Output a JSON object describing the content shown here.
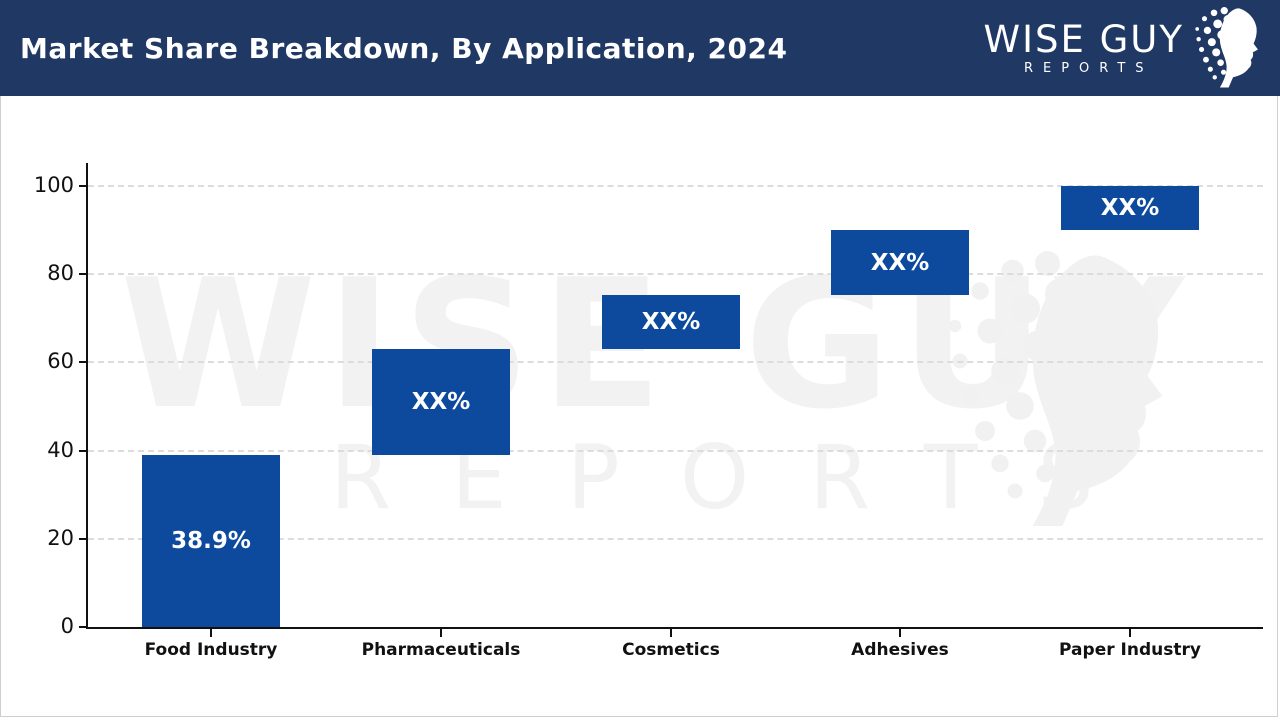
{
  "header": {
    "title": "Market Share Breakdown, By Application, 2024",
    "logo": {
      "line1": "WISE GUY",
      "line2": "REPORTS"
    }
  },
  "watermark": {
    "line1": "WISE GUY",
    "line2": "REPORTS"
  },
  "chart_data": {
    "type": "bar",
    "subtype": "floating-waterfall",
    "title": "Market Share Breakdown, By Application, 2024",
    "categories": [
      "Food Industry",
      "Pharmaceuticals",
      "Cosmetics",
      "Adhesives",
      "Paper Industry"
    ],
    "series": [
      {
        "name": "Market Share",
        "segments": [
          {
            "category": "Food Industry",
            "base": 0,
            "top": 38.9,
            "label": "38.9%"
          },
          {
            "category": "Pharmaceuticals",
            "base": 38.9,
            "top": 63.0,
            "label": "XX%"
          },
          {
            "category": "Cosmetics",
            "base": 63.0,
            "top": 75.3,
            "label": "XX%"
          },
          {
            "category": "Adhesives",
            "base": 75.3,
            "top": 90.0,
            "label": "XX%"
          },
          {
            "category": "Paper Industry",
            "base": 90.0,
            "top": 100.0,
            "label": "XX%"
          }
        ]
      }
    ],
    "xlabel": "",
    "ylabel": "",
    "yticks": [
      0,
      20,
      40,
      60,
      80,
      100
    ],
    "ylim": [
      0,
      105
    ],
    "grid": "horizontal-dashed",
    "legend": "none",
    "bar_color": "#0d4a9e",
    "bar_label_color": "#ffffff"
  },
  "colors": {
    "header_bg": "#203864",
    "bar": "#0d4a9e",
    "axis": "#111111",
    "grid": "#dcdcdc",
    "watermark": "#f1f1f1",
    "frame_border": "#cfcfcf"
  }
}
